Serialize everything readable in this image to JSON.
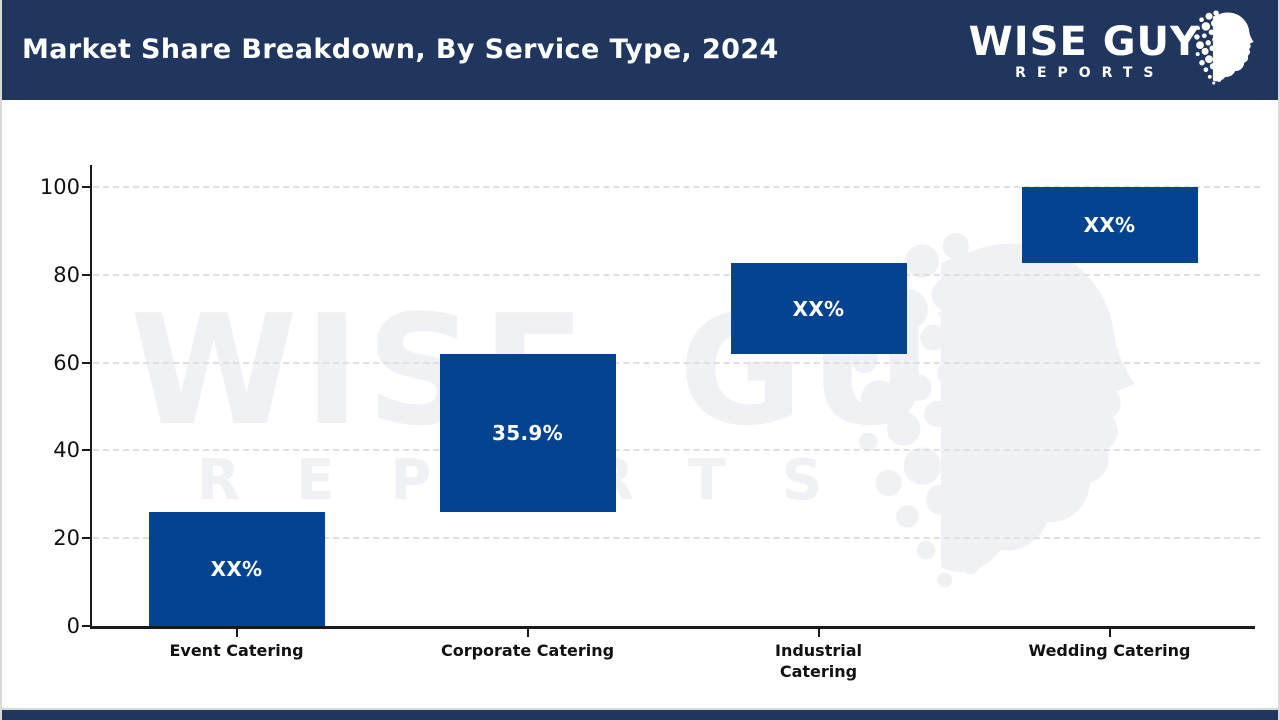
{
  "header": {
    "title": "Market Share Breakdown, By Service Type, 2024",
    "logo": {
      "line1": "WISE GUY",
      "line2": "REPORTS"
    }
  },
  "watermark": {
    "line1": "WISE GUY",
    "line2": "REPORTS"
  },
  "colors": {
    "header_bg": "#21365f",
    "bar": "#04438f",
    "bar_label": "#ffffff",
    "gridline": "#e0e0e0",
    "axis": "#1a1a1a",
    "watermark": "#f0f1f4",
    "border": "#d9d9d9"
  },
  "chart_data": {
    "type": "bar",
    "subtype": "waterfall",
    "title": "Market Share Breakdown, By Service Type, 2024",
    "categories": [
      "Event Catering",
      "Corporate Catering",
      "Industrial\nCatering",
      "Wedding Catering"
    ],
    "series": [
      {
        "name": "Market Share (%)",
        "starts": [
          0,
          26,
          61.9,
          82.7
        ],
        "ends": [
          26,
          61.9,
          82.7,
          100
        ]
      }
    ],
    "bar_labels": [
      "XX%",
      "35.9%",
      "XX%",
      "XX%"
    ],
    "xlabel": "",
    "ylabel": "",
    "ylim": [
      0,
      100
    ],
    "yticks": [
      0,
      20,
      40,
      60,
      80,
      100
    ],
    "grid": "dashed-horizontal",
    "legend": "none"
  }
}
